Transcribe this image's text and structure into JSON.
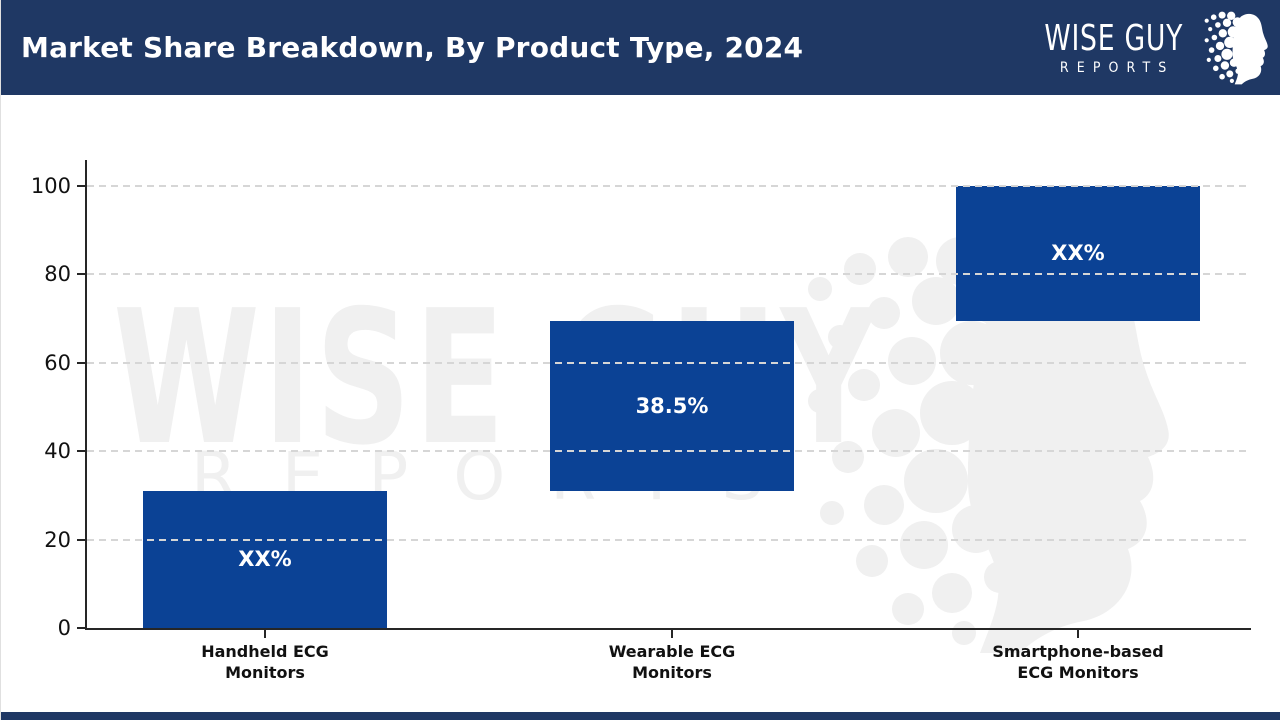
{
  "header": {
    "title": "Market Share Breakdown, By Product Type, 2024",
    "background_color": "#1f3864",
    "logo": {
      "line1": "WISE GUY",
      "line2": "REPORTS"
    }
  },
  "watermark": {
    "line1": "WISE GUY",
    "line2": "REPORTS",
    "color": "#f0f0f0"
  },
  "footer": {
    "background_color": "#1f3864"
  },
  "chart_data": {
    "type": "bar",
    "variant": "floating-waterfall",
    "title": "Market Share Breakdown, By Product Type, 2024",
    "categories": [
      "Handheld ECG\nMonitors",
      "Wearable ECG\nMonitors",
      "Smartphone-based\nECG Monitors"
    ],
    "segments": [
      {
        "category": "Handheld ECG Monitors",
        "start": 0,
        "end": 31,
        "label": "XX%"
      },
      {
        "category": "Wearable ECG Monitors",
        "start": 31,
        "end": 69.5,
        "label": "38.5%"
      },
      {
        "category": "Smartphone-based ECG Monitors",
        "start": 69.5,
        "end": 100,
        "label": "XX%"
      }
    ],
    "xlabel": "",
    "ylabel": "",
    "yticks": [
      0,
      20,
      40,
      60,
      80,
      100
    ],
    "ylim": [
      0,
      105
    ],
    "grid": "horizontal-dashed",
    "legend": "none",
    "bar_color": "#0b4295",
    "bar_label_color": "#ffffff",
    "axis_color": "#262626",
    "grid_color": "#d6d6d6"
  }
}
